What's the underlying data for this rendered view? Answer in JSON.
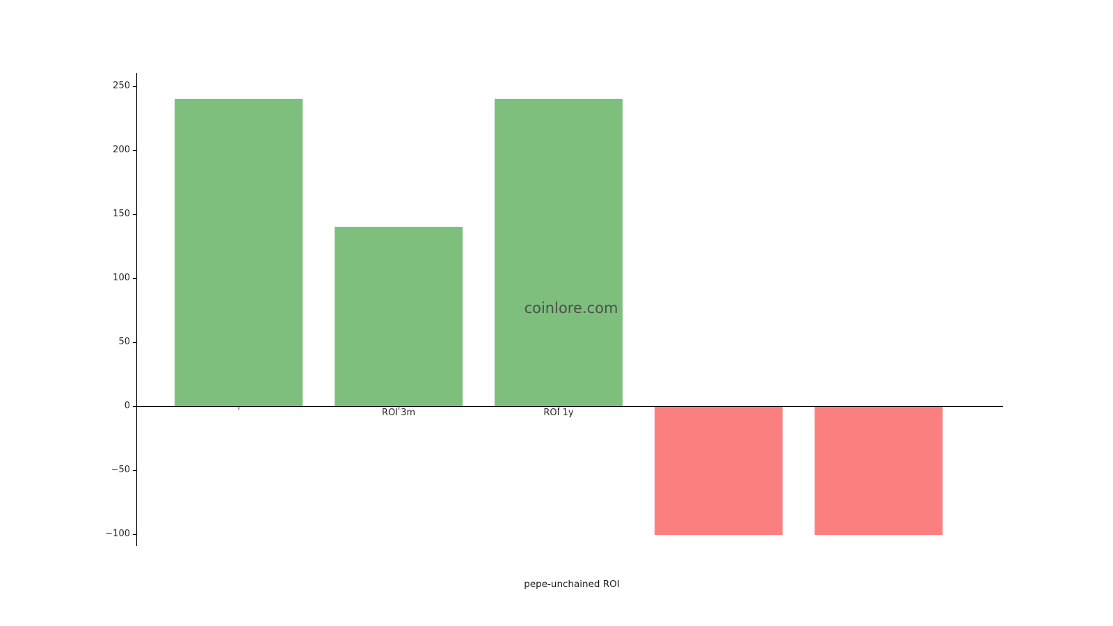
{
  "chart_data": {
    "type": "bar",
    "title": "",
    "xlabel": "pepe-unchained ROI",
    "ylabel": "",
    "watermark": "coinlore.com",
    "categories": [
      "",
      "ROI 3m",
      "ROI 1y",
      null,
      null
    ],
    "values": [
      240,
      140,
      240,
      -100,
      -100
    ],
    "yticks": [
      250,
      200,
      150,
      100,
      50,
      0,
      -50,
      -100
    ],
    "ylim": [
      -109,
      260
    ],
    "grid": false,
    "legend": null,
    "colors": {
      "positive": "#7ebf7e",
      "negative": "#fc7f7f",
      "axis": "#000000",
      "tick_label": "#262626",
      "watermark": "#4d4d4d",
      "background": "#ffffff"
    }
  }
}
